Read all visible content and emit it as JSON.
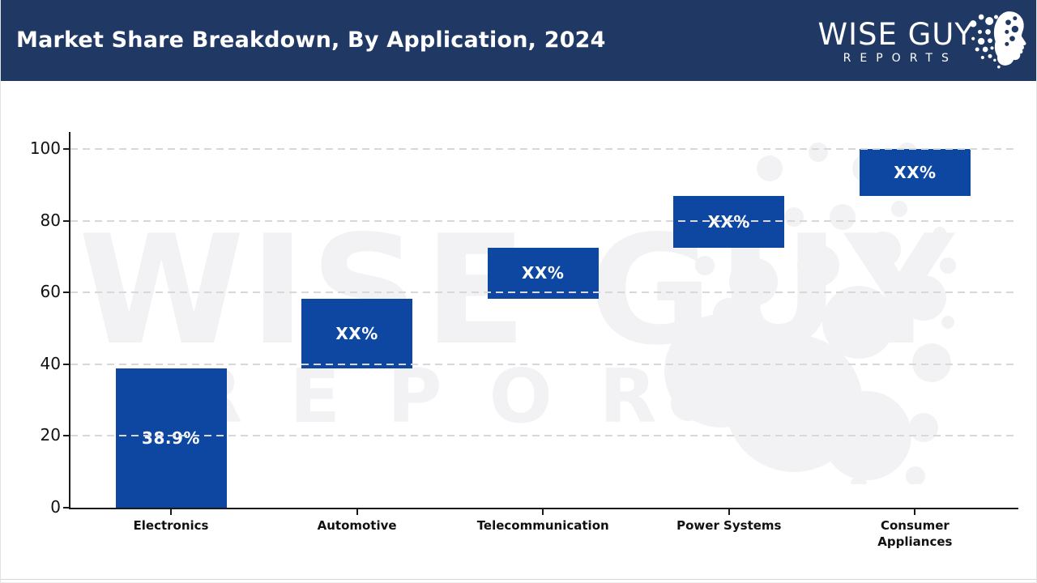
{
  "header": {
    "title": "Market Share Breakdown, By Application, 2024",
    "logo": {
      "line1": "WISE GUY",
      "line2": "REPORTS"
    }
  },
  "watermark": {
    "line1": "WISE GUY",
    "line2": "REPORTS"
  },
  "colors": {
    "header_bg": "#203864",
    "bar": "#0d47a1",
    "bar_label": "#ffffff",
    "watermark": "#f2f2f4",
    "grid": "#d8d8d8",
    "axis": "#1a1a1a",
    "tick_text": "#111111",
    "frame_line": "#d9d9d9"
  },
  "chart_data": {
    "type": "bar",
    "subtype": "waterfall",
    "title": "Market Share Breakdown, By Application, 2024",
    "categories": [
      "Electronics",
      "Automotive",
      "Telecommunication",
      "Power Systems",
      "Consumer Appliances"
    ],
    "segments": [
      {
        "category": "Electronics",
        "start": 0,
        "end": 38.9,
        "label": "38.9%"
      },
      {
        "category": "Automotive",
        "start": 38.9,
        "end": 58.3,
        "label": "XX%"
      },
      {
        "category": "Telecommunication",
        "start": 58.3,
        "end": 72.5,
        "label": "XX%"
      },
      {
        "category": "Power Systems",
        "start": 72.5,
        "end": 87.0,
        "label": "XX%"
      },
      {
        "category": "Consumer Appliances",
        "start": 87.0,
        "end": 100.0,
        "label": "XX%"
      }
    ],
    "increments": [
      38.9,
      19.4,
      14.2,
      14.5,
      13.0
    ],
    "xlabel": "",
    "ylabel": "",
    "ylim": [
      0,
      100
    ],
    "yticks": [
      0,
      20,
      40,
      60,
      80,
      100
    ],
    "grid": "horizontal-dashed",
    "legend": "none",
    "bar_color": "#0d47a1",
    "bar_label_color": "#ffffff"
  }
}
